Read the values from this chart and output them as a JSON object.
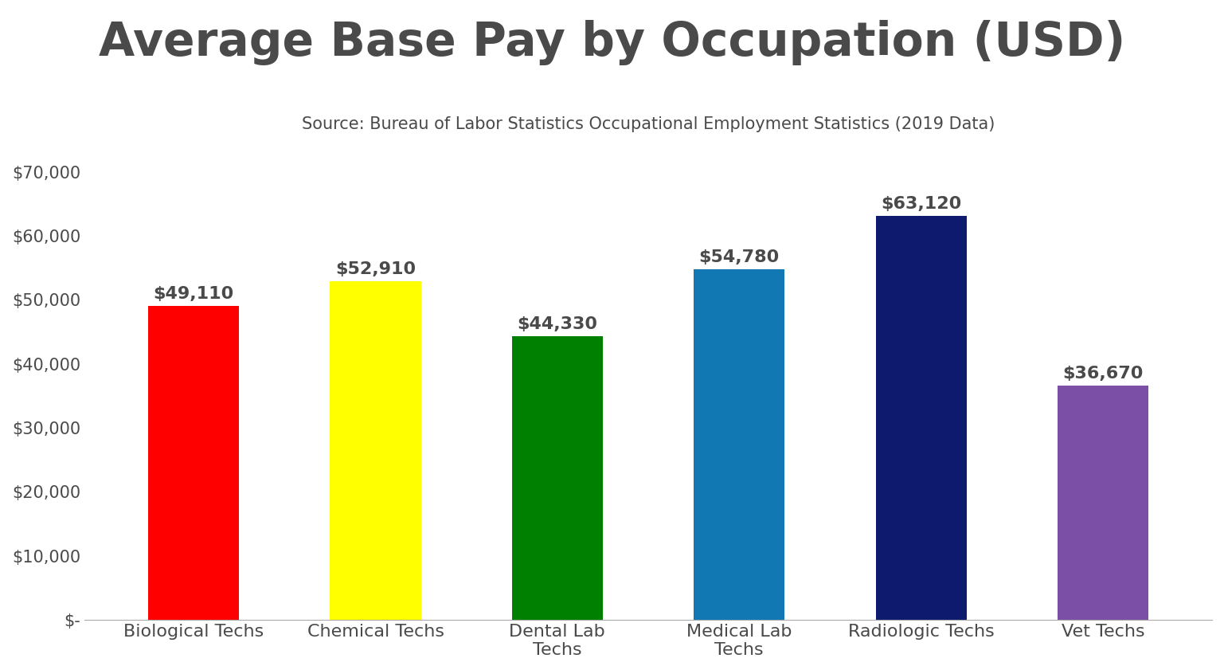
{
  "title": "Average Base Pay by Occupation (USD)",
  "subtitle": "Source: Bureau of Labor Statistics Occupational Employment Statistics (2019 Data)",
  "categories": [
    "Biological Techs",
    "Chemical Techs",
    "Dental Lab\nTechs",
    "Medical Lab\nTechs",
    "Radiologic Techs",
    "Vet Techs"
  ],
  "values": [
    49110,
    52910,
    44330,
    54780,
    63120,
    36670
  ],
  "bar_colors": [
    "#ff0000",
    "#ffff00",
    "#008000",
    "#1278b4",
    "#0d1a6e",
    "#7b4fa6"
  ],
  "bar_labels": [
    "$49,110",
    "$52,910",
    "$44,330",
    "$54,780",
    "$63,120",
    "$36,670"
  ],
  "ylim": [
    0,
    75000
  ],
  "yticks": [
    0,
    10000,
    20000,
    30000,
    40000,
    50000,
    60000,
    70000
  ],
  "ytick_labels": [
    "$-",
    "$10,000",
    "$20,000",
    "$30,000",
    "$40,000",
    "$50,000",
    "$60,000",
    "$70,000"
  ],
  "title_fontsize": 42,
  "subtitle_fontsize": 15,
  "bar_label_fontsize": 16,
  "xtick_fontsize": 16,
  "ytick_fontsize": 15,
  "background_color": "#ffffff",
  "title_color": "#4a4a4a",
  "subtitle_color": "#4a4a4a",
  "label_color": "#4a4a4a",
  "bar_width": 0.5
}
